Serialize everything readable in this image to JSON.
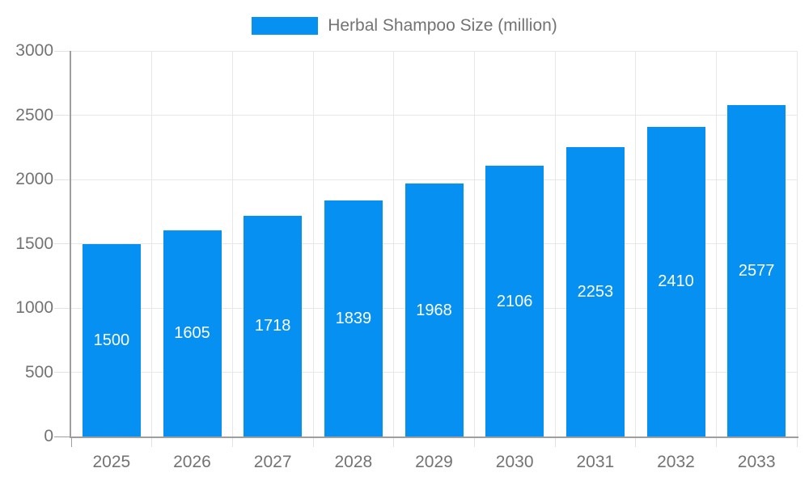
{
  "legend": {
    "label": "Herbal Shampoo Size (million)"
  },
  "colors": {
    "accent": "#0590F2",
    "axis": "#9e9e9e",
    "grid": "#e7e7e7",
    "tick": "#e2e2e2",
    "text": "#737373",
    "bar_label": "#ffffff",
    "background": "#ffffff"
  },
  "chart_data": {
    "type": "bar",
    "title": "Herbal Shampoo Size (million)",
    "categories": [
      "2025",
      "2026",
      "2027",
      "2028",
      "2029",
      "2030",
      "2031",
      "2032",
      "2033"
    ],
    "values": [
      1500,
      1605,
      1718,
      1839,
      1968,
      2106,
      2253,
      2410,
      2577
    ],
    "xlabel": "",
    "ylabel": "",
    "ylim": [
      0,
      3000
    ],
    "ytick_step": 500,
    "yticks": [
      0,
      500,
      1000,
      1500,
      2000,
      2500,
      3000
    ],
    "grid": true,
    "legend_position": "top-center",
    "bar_labels_inside": true
  }
}
